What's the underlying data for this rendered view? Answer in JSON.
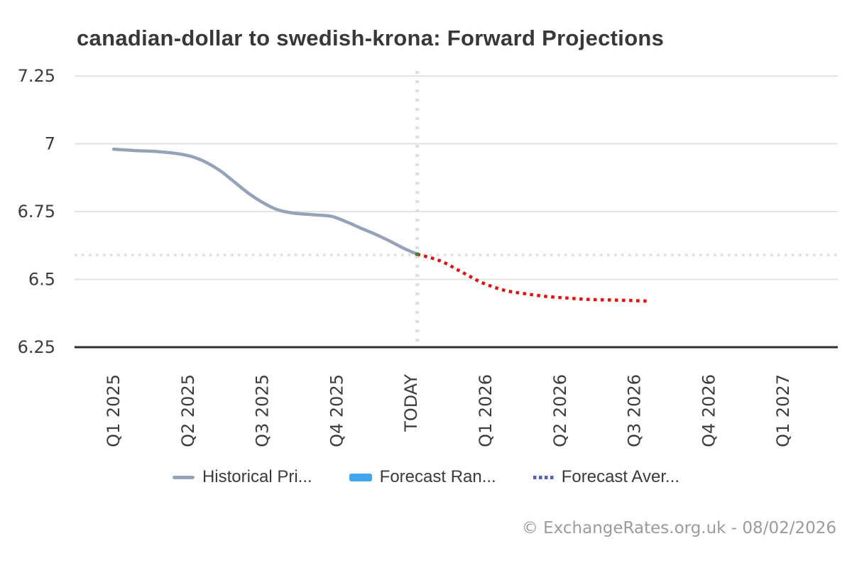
{
  "title": "canadian-dollar to swedish-krona: Forward Projections",
  "copyright": "© ExchangeRates.org.uk - 08/02/2026",
  "legend": {
    "items": [
      {
        "label": "Historical Pri...",
        "swatch": "line",
        "color": "#94a3b8"
      },
      {
        "label": "Forecast Ran...",
        "swatch": "rect",
        "color": "#41a6f0"
      },
      {
        "label": "Forecast Aver...",
        "swatch": "dotted",
        "color": "#5a5fae"
      }
    ]
  },
  "colors": {
    "historical_line": "#94a3b8",
    "forecast_line": "#e01111",
    "junction_marker": "#2e8b2e",
    "gridline": "#e3e3e3",
    "dotted_guides": "#dedede",
    "axis_line": "#2f2f2f",
    "tick_text": "#3c3c3c"
  },
  "chart_data": {
    "type": "line",
    "title": "canadian-dollar to swedish-krona: Forward Projections",
    "xlabel": "",
    "ylabel": "",
    "grid": true,
    "legend_position": "bottom",
    "x_ticks": [
      "Q1 2025",
      "Q2 2025",
      "Q3 2025",
      "Q4 2025",
      "TODAY",
      "Q1 2026",
      "Q2 2026",
      "Q3 2026",
      "Q4 2026",
      "Q1 2027"
    ],
    "y_ticks": [
      "7.25",
      "7",
      "6.75",
      "6.5",
      "6.25"
    ],
    "y_tick_values": [
      7.25,
      7.0,
      6.75,
      6.5,
      6.25
    ],
    "ylim": [
      6.25,
      7.25
    ],
    "xlim_units": [
      -0.55,
      9.7
    ],
    "reference_level": 6.59,
    "today_unit": 4.08,
    "junction_marker": {
      "x": 4.08,
      "y": 6.593
    },
    "series": [
      {
        "name": "Historical Price",
        "style": "solid",
        "color": "#94a3b8",
        "points": [
          [
            0.0,
            6.98
          ],
          [
            0.3,
            6.975
          ],
          [
            0.6,
            6.971
          ],
          [
            0.85,
            6.964
          ],
          [
            1.05,
            6.953
          ],
          [
            1.24,
            6.932
          ],
          [
            1.43,
            6.901
          ],
          [
            1.62,
            6.86
          ],
          [
            1.81,
            6.818
          ],
          [
            2.0,
            6.784
          ],
          [
            2.2,
            6.757
          ],
          [
            2.4,
            6.745
          ],
          [
            2.6,
            6.74
          ],
          [
            2.8,
            6.736
          ],
          [
            2.95,
            6.731
          ],
          [
            3.15,
            6.71
          ],
          [
            3.34,
            6.687
          ],
          [
            3.53,
            6.665
          ],
          [
            3.72,
            6.64
          ],
          [
            3.91,
            6.613
          ],
          [
            4.08,
            6.593
          ]
        ]
      },
      {
        "name": "Forecast Average",
        "style": "dotted",
        "color": "#e01111",
        "points": [
          [
            4.08,
            6.593
          ],
          [
            4.39,
            6.568
          ],
          [
            4.68,
            6.527
          ],
          [
            4.96,
            6.487
          ],
          [
            5.25,
            6.46
          ],
          [
            5.53,
            6.447
          ],
          [
            5.82,
            6.437
          ],
          [
            6.11,
            6.431
          ],
          [
            6.39,
            6.426
          ],
          [
            6.68,
            6.424
          ],
          [
            6.97,
            6.422
          ],
          [
            7.17,
            6.42
          ]
        ]
      }
    ]
  }
}
